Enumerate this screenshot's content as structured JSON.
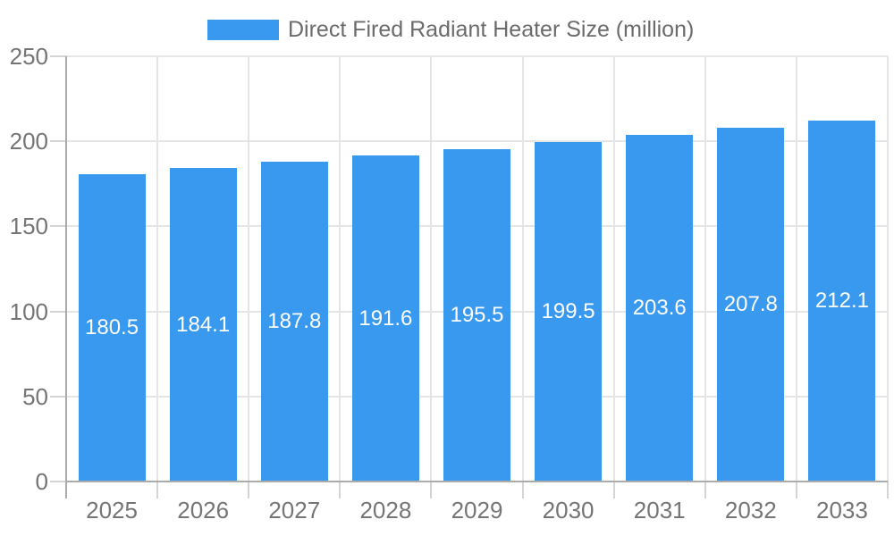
{
  "chart_data": {
    "type": "bar",
    "title": "Direct Fired Radiant Heater Size (million)",
    "legend": {
      "label": "Direct Fired Radiant Heater Size (million)",
      "position": "top-center"
    },
    "categories": [
      "2025",
      "2026",
      "2027",
      "2028",
      "2029",
      "2030",
      "2031",
      "2032",
      "2033"
    ],
    "values": [
      180.5,
      184.1,
      187.8,
      191.6,
      195.5,
      199.5,
      203.6,
      207.8,
      212.1
    ],
    "value_labels": [
      "180.5",
      "184.1",
      "187.8",
      "191.6",
      "195.5",
      "199.5",
      "203.6",
      "207.8",
      "212.1"
    ],
    "xlabel": "",
    "ylabel": "",
    "ylim": [
      0,
      250
    ],
    "y_ticks": [
      0,
      50,
      100,
      150,
      200,
      250
    ],
    "grid": true,
    "colors": {
      "bar": "#3899EE",
      "value_label": "#FFFFFF",
      "axis_line": "#ABABAB",
      "gridline": "#E5E5E5",
      "tick_mark": "#D4D4D4",
      "tick_label": "#757575",
      "legend_text": "#6B6B6B"
    }
  }
}
